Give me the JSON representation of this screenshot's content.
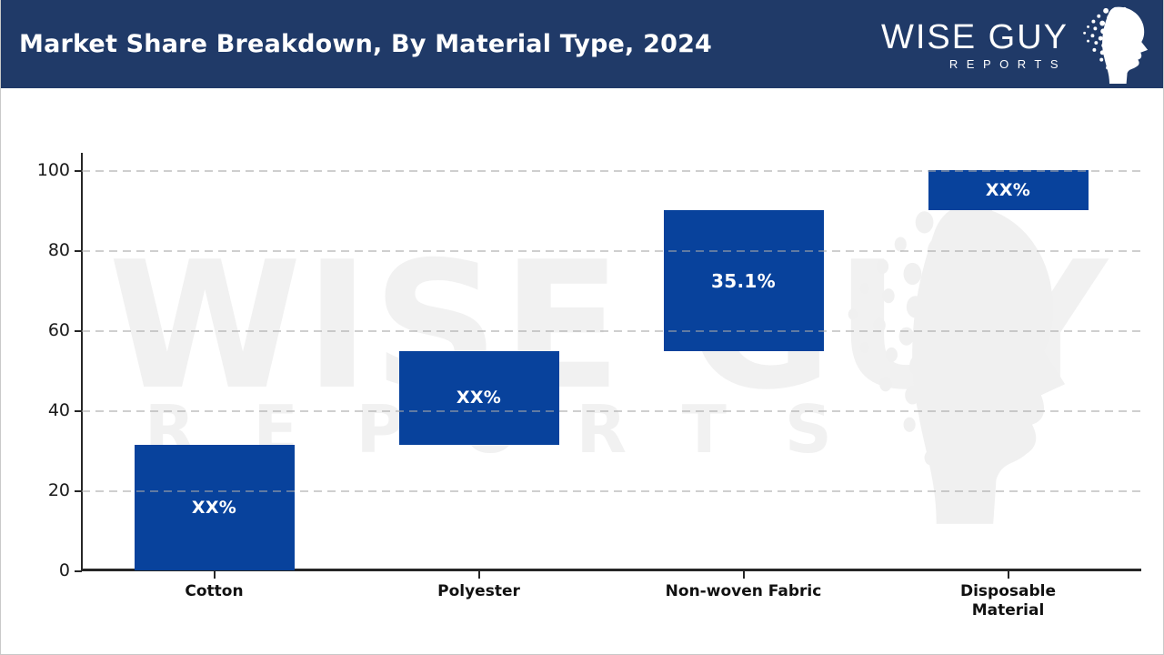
{
  "header": {
    "title": "Market Share Breakdown, By Material Type, 2024",
    "logo": {
      "line1": "WISE GUY",
      "line2": "REPORTS"
    }
  },
  "watermark": {
    "line1": "WISE GUY",
    "line2": "REPORTS"
  },
  "colors": {
    "header_bg": "#203A68",
    "bar": "#08429C",
    "bar_label": "#FFFFFF",
    "axis": "#262626",
    "gridline_gray": "#DCDCDC",
    "watermark_gray": "#F1F1F1",
    "page_border": "#C9C9C9"
  },
  "chart_data": {
    "type": "bar",
    "subtype": "waterfall",
    "title": "Market Share Breakdown, By Material Type, 2024",
    "categories": [
      "Cotton",
      "Polyester",
      "Non-woven Fabric",
      "Disposable Material"
    ],
    "bars": [
      {
        "category": "Cotton",
        "label_lines": [
          "Cotton"
        ],
        "start": 0,
        "end": 31.4,
        "value_label": "XX%"
      },
      {
        "category": "Polyester",
        "label_lines": [
          "Polyester"
        ],
        "start": 31.4,
        "end": 54.8,
        "value_label": "XX%"
      },
      {
        "category": "Non-woven Fabric",
        "label_lines": [
          "Non-woven Fabric"
        ],
        "start": 54.8,
        "end": 89.9,
        "value_label": "35.1%"
      },
      {
        "category": "Disposable Material",
        "label_lines": [
          "Disposable",
          "Material"
        ],
        "start": 89.9,
        "end": 100,
        "value_label": "XX%"
      }
    ],
    "ylim": [
      0,
      100
    ],
    "yticks": [
      0,
      20,
      40,
      60,
      80,
      100
    ],
    "xlabel": "",
    "ylabel": "",
    "grid": "horizontal-dashed",
    "legend": "none"
  }
}
